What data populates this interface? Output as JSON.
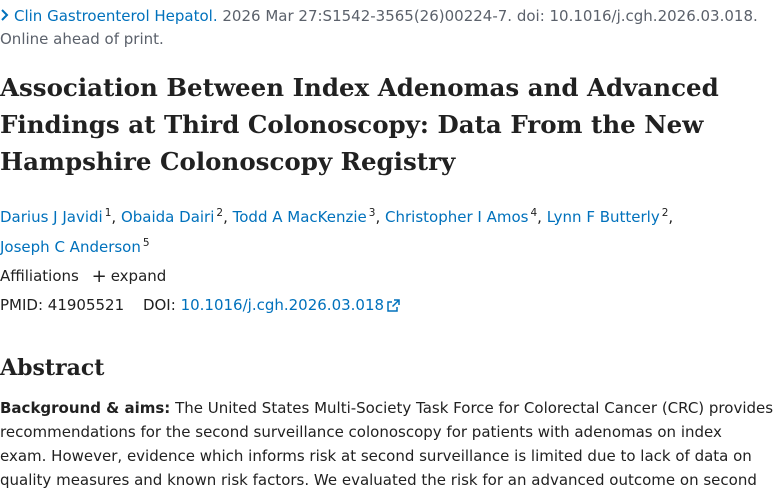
{
  "citation": {
    "journal": "Clin Gastroenterol Hepatol.",
    "details": " 2026 Mar 27:S1542-3565(26)00224-7. doi: 10.1016/j.cgh.2026.03.018.",
    "status": "Online ahead of print."
  },
  "title_lines": [
    "Association Between Index Adenomas and Advanced",
    "Findings at Third Colonoscopy: Data From the New",
    "Hampshire Colonoscopy Registry"
  ],
  "authors": [
    {
      "name": "Darius J Javidi",
      "aff": "1"
    },
    {
      "name": "Obaida Dairi",
      "aff": "2"
    },
    {
      "name": "Todd A MacKenzie",
      "aff": "3"
    },
    {
      "name": "Christopher I Amos",
      "aff": "4"
    },
    {
      "name": "Lynn F Butterly",
      "aff": "2"
    },
    {
      "name": "Joseph C Anderson",
      "aff": "5"
    }
  ],
  "separators": {
    "comma": ","
  },
  "affiliations": {
    "label": "Affiliations",
    "expand_label": "expand"
  },
  "ids": {
    "pmid_label": "PMID:",
    "pmid": "41905521",
    "doi_label": "DOI:",
    "doi": "10.1016/j.cgh.2026.03.018"
  },
  "abstract": {
    "heading": "Abstract",
    "lead": "Background & aims:",
    "lines": [
      " The United States Multi-Society Task Force for Colorectal Cancer (CRC) provides",
      "recommendations for the second surveillance colonoscopy for patients with adenomas on index",
      "exam. However, evidence which informs risk at second surveillance is limited due to lack of data on",
      "quality measures and known risk factors. We evaluated the risk for an advanced outcome on second"
    ]
  },
  "icons": {
    "chevron": "chevron-right-icon",
    "expand": "plus-icon",
    "external": "external-link-icon"
  },
  "colors": {
    "link": "#0071bc",
    "text": "#212121",
    "muted": "#5b616b"
  }
}
